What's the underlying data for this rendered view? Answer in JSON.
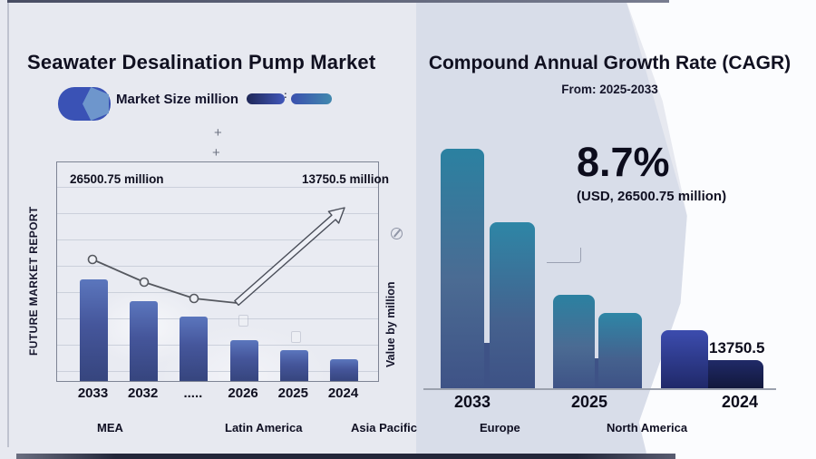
{
  "header": {
    "title": "Seawater Desalination Pump Market",
    "market_size_label": "Market Size million",
    "ratio_separator": ":"
  },
  "right_panel": {
    "title": "Compound Annual Growth Rate (CAGR)",
    "subtitle": "From: 2025-2033",
    "cagr_value": "8.7%",
    "cagr_note": "(USD, 26500.75 million)"
  },
  "left_chart": {
    "annotation_left": "26500.75 million",
    "annotation_right": "13750.5 million",
    "side_label": "FUTURE MARKET REPORT"
  },
  "right_chart": {
    "side_label": "Value by million",
    "value_label": "13750.5"
  },
  "decor": {
    "plus": "+"
  },
  "legend": {
    "items": [
      {
        "label": "MEA",
        "color": "#7d5fb2"
      },
      {
        "label": "Latin America",
        "color": "#d9a9d6"
      },
      {
        "label": "Asia Pacific",
        "color": "#85cade"
      },
      {
        "label": "Europe",
        "color": "#4f9ce0"
      },
      {
        "label": "North America",
        "color": "#2c3a6b"
      }
    ]
  },
  "chart_data": [
    {
      "type": "bar",
      "title": "Seawater Desalination Pump Market",
      "legend_label": "Market Size million",
      "categories": [
        "2033",
        "2032",
        ".....",
        "2026",
        "2025",
        "2024"
      ],
      "values_relative": [
        1.0,
        0.79,
        0.63,
        0.4,
        0.3,
        0.21
      ],
      "annotations": [
        "26500.75 million",
        "13750.5 million"
      ],
      "overlay_line": {
        "type": "line",
        "points_relative": [
          0.56,
          0.46,
          0.38,
          0.36
        ],
        "arrow": "up-right"
      },
      "side_label": "FUTURE MARKET REPORT",
      "grid": "horizontal",
      "bar_color": "#4a5fa5"
    },
    {
      "type": "bar",
      "title": "Compound Annual Growth Rate (CAGR)",
      "subtitle": "From: 2025-2033",
      "cagr": "8.7%",
      "cagr_note": "(USD, 26500.75 million)",
      "categories": [
        "2033",
        "2025",
        "2024"
      ],
      "series": [
        {
          "name": "bar-left",
          "values_relative": [
            1.0,
            0.395,
            0.248
          ]
        },
        {
          "name": "bar-right",
          "values_relative": [
            0.695,
            0.32,
            0.124
          ]
        }
      ],
      "data_labels": {
        "2024": "13750.5"
      },
      "ylabel": "Value by million",
      "bar_colors": [
        "#2b81a1",
        "#3c4cae"
      ]
    }
  ]
}
